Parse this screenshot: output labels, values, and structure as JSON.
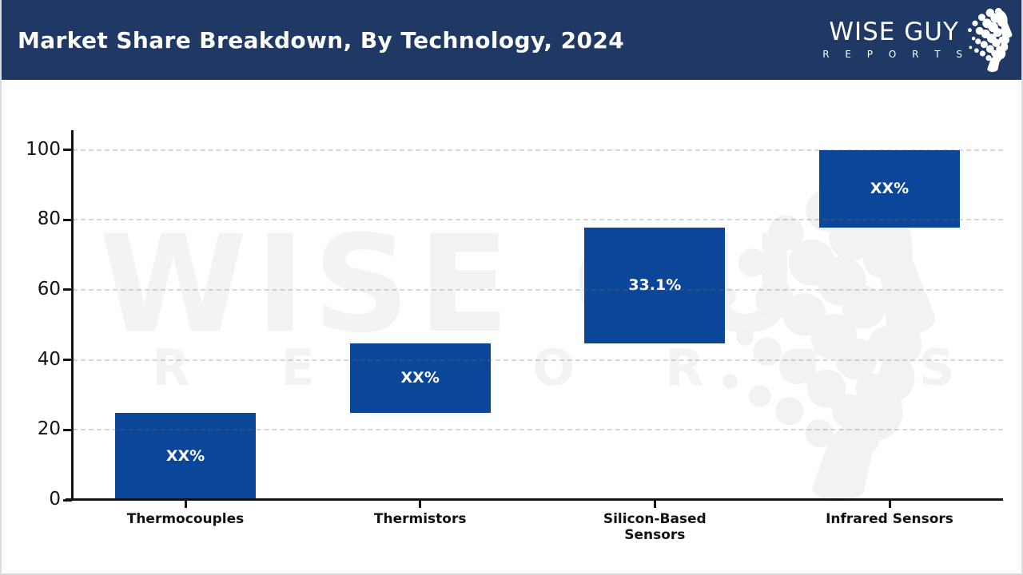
{
  "header": {
    "title": "Market Share Breakdown, By Technology, 2024",
    "logo": {
      "wordmark": "WISE GUY",
      "sub": "R E P O R T S"
    }
  },
  "watermark": {
    "wordmark": "WISE GU",
    "sub": "R E P O R T S"
  },
  "chart_data": {
    "type": "bar",
    "variant": "floating-waterfall-segments",
    "title": "Market Share Breakdown, By Technology, 2024",
    "categories": [
      "Thermocouples",
      "Thermistors",
      "Silicon-Based Sensors",
      "Infrared Sensors"
    ],
    "category_lines": [
      [
        "Thermocouples"
      ],
      [
        "Thermistors"
      ],
      [
        "Silicon-Based",
        "Sensors"
      ],
      [
        "Infrared Sensors"
      ]
    ],
    "segments": [
      {
        "category": "Thermocouples",
        "from": 0,
        "to": 24.9,
        "value": 24.9,
        "label": "XX%"
      },
      {
        "category": "Thermistors",
        "from": 24.9,
        "to": 44.7,
        "value": 19.8,
        "label": "XX%"
      },
      {
        "category": "Silicon-Based Sensors",
        "from": 44.7,
        "to": 77.8,
        "value": 33.1,
        "label": "33.1%"
      },
      {
        "category": "Infrared Sensors",
        "from": 77.8,
        "to": 100,
        "value": 22.2,
        "label": "XX%"
      }
    ],
    "ylim": [
      0,
      105
    ],
    "yticks": [
      0,
      20,
      40,
      60,
      80,
      100
    ],
    "grid": true,
    "grid_style": "dashed",
    "legend": false,
    "bar_color": "#0c4699",
    "bar_label_color": "#ffffff",
    "axis_color": "#141414",
    "header_color": "#1f3864",
    "watermark_color": "#f3f3f3"
  }
}
